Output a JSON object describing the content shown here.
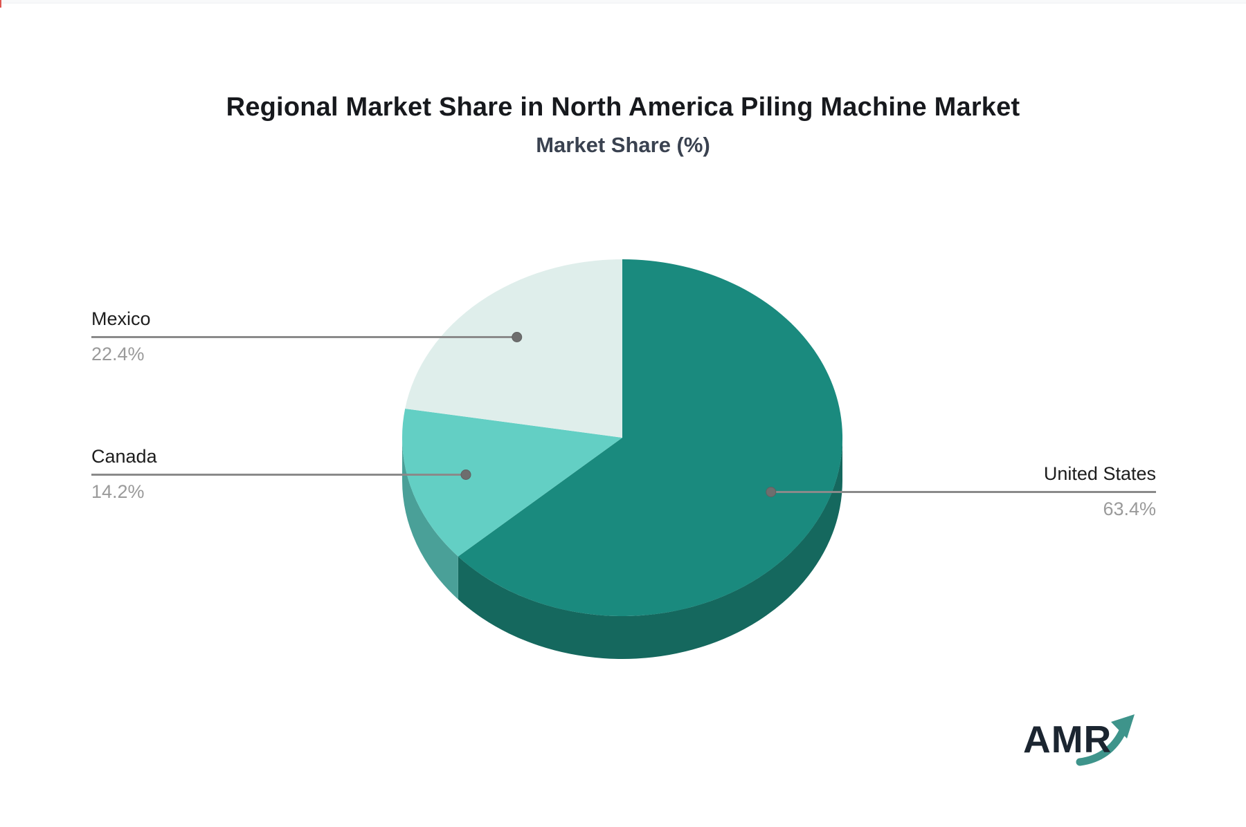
{
  "page": {
    "title": "Regional Market Share in North America Piling Machine Market",
    "subtitle": "Market Share (%)"
  },
  "chart_data": {
    "type": "pie",
    "title": "Regional Market Share in North America Piling Machine Market",
    "subtitle": "Market Share (%)",
    "unit": "%",
    "effect": "3d",
    "start_angle_deg": 0,
    "direction": "clockwise",
    "legend": "none",
    "slices": [
      {
        "label": "United States",
        "value": 63.4,
        "display": "63.4%",
        "color": "#1A8A7E",
        "side_color": "#15685E",
        "label_side": "right"
      },
      {
        "label": "Canada",
        "value": 14.2,
        "display": "14.2%",
        "color": "#63CFC4",
        "side_color": "#4AA098",
        "label_side": "left"
      },
      {
        "label": "Mexico",
        "value": 22.4,
        "display": "22.4%",
        "color": "#DFEEEB",
        "side_color": "#C9DEDA",
        "label_side": "left"
      }
    ],
    "leader_line_color": "#8A8A8A",
    "leader_dot_color": "#6E6E6E",
    "label_name_color": "#1D1D1D",
    "label_value_color": "#9A9A9A"
  },
  "logo": {
    "text": "AMR",
    "text_color": "#1B2530",
    "arrow_color": "#3E948B"
  }
}
